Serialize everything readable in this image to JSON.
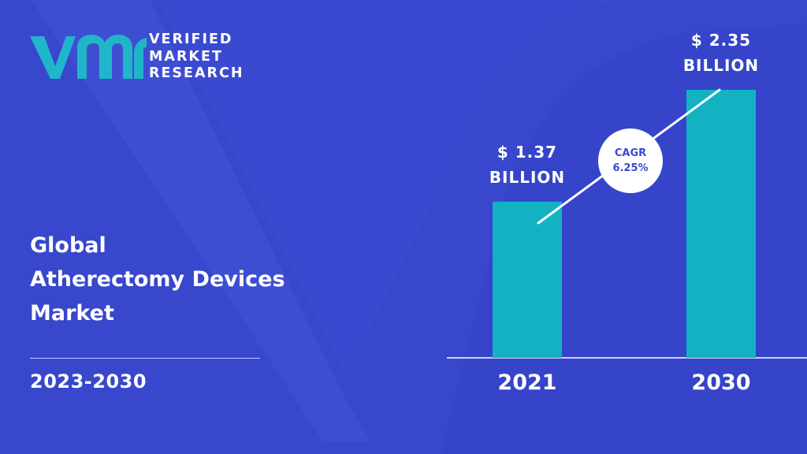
{
  "brand": {
    "line1": "VERIFIED",
    "line2": "MARKET",
    "line3": "RESEARCH",
    "mark_color": "#1fb6c9"
  },
  "title_lines": [
    "Global",
    "Atherectomy Devices",
    "Market"
  ],
  "period": "2023-2030",
  "cagr": {
    "label": "CAGR",
    "value": "6.25%"
  },
  "colors": {
    "background": "#3a4ad0",
    "bar": "#12b2c3",
    "text": "#ffffff"
  },
  "chart_data": {
    "type": "bar",
    "categories": [
      "2021",
      "2030"
    ],
    "values": [
      1.37,
      2.35
    ],
    "value_labels": [
      [
        "$ 1.37",
        "BILLION"
      ],
      [
        "$ 2.35",
        "BILLION"
      ]
    ],
    "unit": "USD Billion",
    "ylim": [
      0,
      2.35
    ],
    "grid": false,
    "legend": "none"
  }
}
